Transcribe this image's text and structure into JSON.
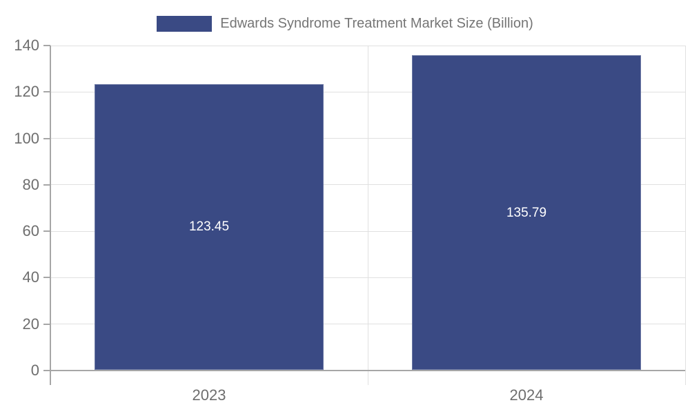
{
  "legend": {
    "label": "Edwards Syndrome Treatment Market Size (Billion)"
  },
  "chart_data": {
    "type": "bar",
    "title": "Edwards Syndrome Treatment Market Size (Billion)",
    "categories": [
      "2023",
      "2024"
    ],
    "series": [
      {
        "name": "Edwards Syndrome Treatment Market Size (Billion)",
        "values": [
          123.45,
          135.79
        ]
      }
    ],
    "values": [
      123.45,
      135.79
    ],
    "data_labels": [
      "123.45",
      "135.79"
    ],
    "xlabel": "",
    "ylabel": "",
    "ylim": [
      0,
      140
    ],
    "yticks": [
      0,
      20,
      40,
      60,
      80,
      100,
      120,
      140
    ],
    "grid": true,
    "legend_position": "top-center",
    "colors": {
      "bar": "#3A4A84",
      "grid_line": "#e0e0e0",
      "axis_line": "#a6a6a6",
      "tick_label": "#6e6e6e",
      "title_text": "#757575",
      "value_label": "#ffffff",
      "background": "#ffffff"
    }
  }
}
